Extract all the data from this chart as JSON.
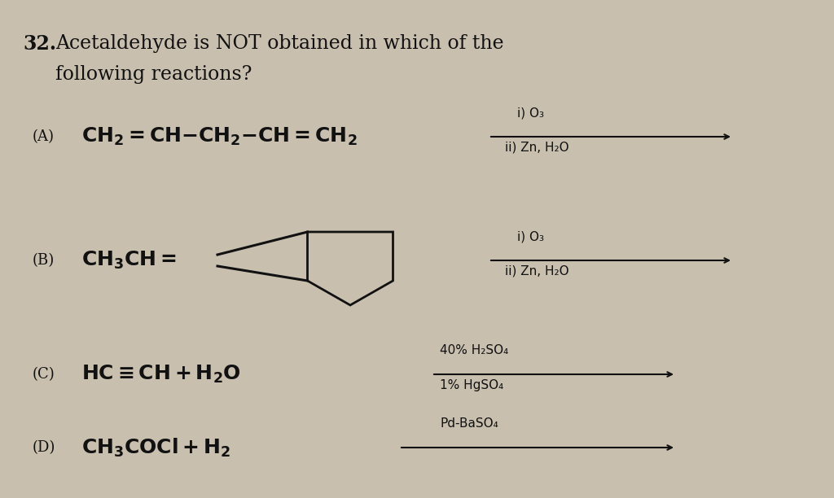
{
  "bg_color": "#c9bfaf",
  "title_number": "32.",
  "title_fontsize": 17,
  "text_color": "#111111",
  "arrow_color": "#111111",
  "option_A_reagent_top": "i) O₃",
  "option_A_reagent_bottom": "ii) Zn, H₂O",
  "option_B_reagent_top": "i) O₃",
  "option_B_reagent_bottom": "ii) Zn, H₂O",
  "option_C_reagent_top": "40% H₂SO₄",
  "option_C_reagent_bottom": "1% HgSO₄",
  "option_D_reagent": "Pd-BaSO₄"
}
